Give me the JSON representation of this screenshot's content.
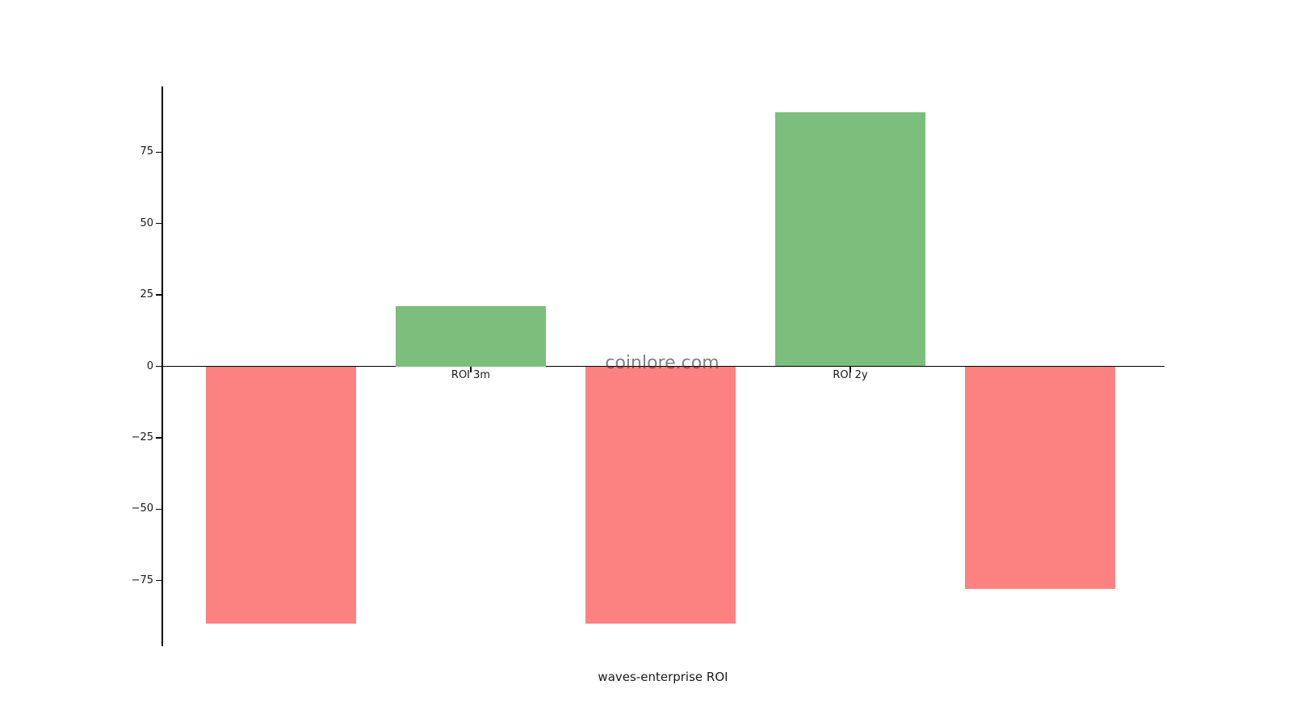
{
  "chart_data": {
    "type": "bar",
    "title": "waves-enterprise ROI",
    "watermark": "coinlore.com",
    "categories": [
      "",
      "ROI 3m",
      "",
      "ROI 2y",
      ""
    ],
    "values": [
      -90,
      21,
      -90,
      89,
      -78
    ],
    "yticks": [
      75,
      50,
      25,
      0,
      -25,
      -50,
      -75
    ],
    "ylim": [
      -98,
      98
    ],
    "grid": false,
    "legend": false,
    "xlabel": "waves-enterprise ROI",
    "ylabel": "",
    "colors": {
      "positive": "#7cbe7c",
      "negative": "#fc8181",
      "axis": "#000000",
      "text": "#1a1a1a",
      "watermark_gray": "#808080"
    }
  }
}
